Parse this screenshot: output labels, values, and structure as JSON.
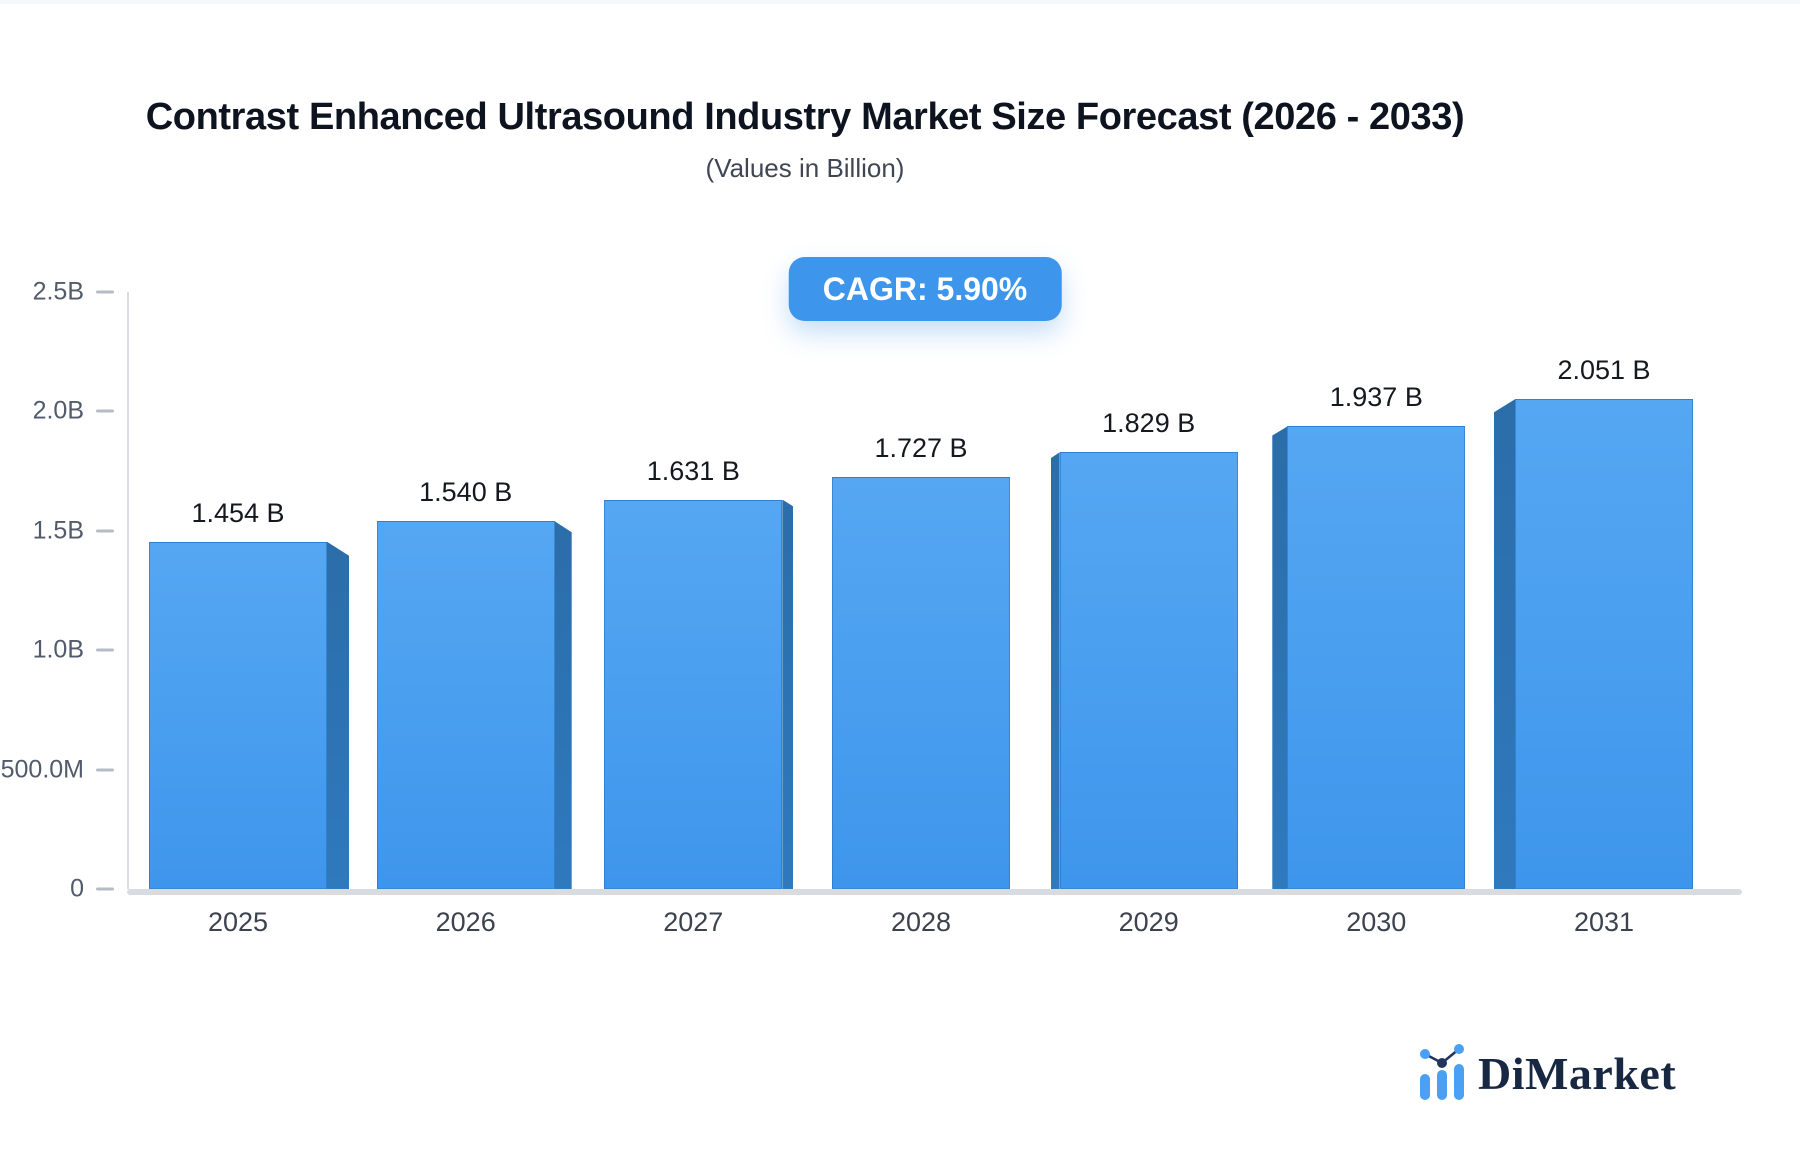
{
  "header": {
    "title": "Contrast Enhanced Ultrasound Industry Market Size Forecast (2026 - 2033)",
    "subtitle": "(Values in Billion)"
  },
  "badge": {
    "label": "CAGR: 5.90%"
  },
  "watermark": {
    "brand": "DiMarket"
  },
  "chart_data": {
    "type": "bar",
    "title": "Contrast Enhanced Ultrasound Industry Market Size Forecast (2026 - 2033)",
    "subtitle": "(Values in Billion)",
    "cagr_label": "CAGR: 5.90%",
    "categories": [
      "2025",
      "2026",
      "2027",
      "2028",
      "2029",
      "2030",
      "2031"
    ],
    "values": [
      1.454,
      1.54,
      1.631,
      1.727,
      1.829,
      1.937,
      2.051
    ],
    "value_labels": [
      "1.454 B",
      "1.540 B",
      "1.631 B",
      "1.727 B",
      "1.829 B",
      "1.937 B",
      "2.051 B"
    ],
    "unit": "Billion",
    "ylim": [
      0,
      2.5
    ],
    "y_ticks": [
      {
        "value": 0.0,
        "label": "0"
      },
      {
        "value": 0.5,
        "label": "500.0M"
      },
      {
        "value": 1.0,
        "label": "1.0B"
      },
      {
        "value": 1.5,
        "label": "1.5B"
      },
      {
        "value": 2.0,
        "label": "2.0B"
      },
      {
        "value": 2.5,
        "label": "2.5B"
      }
    ],
    "grid": false,
    "legend": "none",
    "bar_color": "#3e96ec",
    "bar_side_color": "#2e76b6",
    "axis_color": "#d8dbe0",
    "label_color": "#14181f"
  }
}
